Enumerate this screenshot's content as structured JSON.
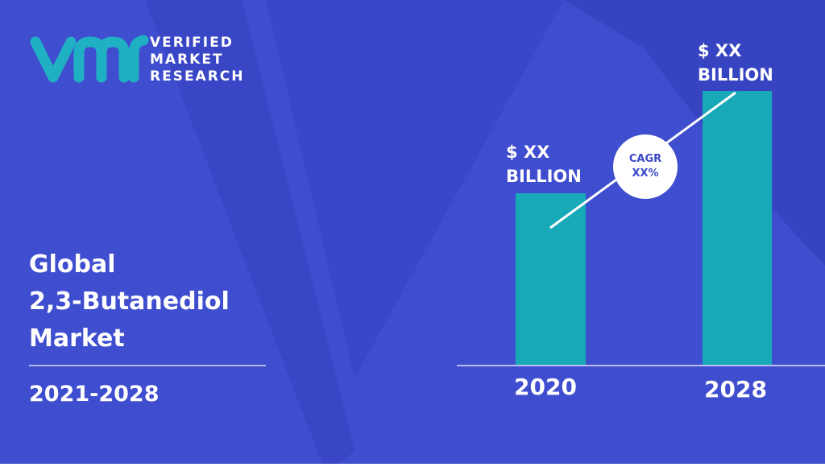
{
  "logo": {
    "lines": [
      "VERIFIED",
      "MARKET",
      "RESEARCH"
    ]
  },
  "headline": {
    "lines": [
      "Global",
      "2,3-Butanediol",
      "Market"
    ]
  },
  "period": "2021-2028",
  "bars": [
    {
      "year": "2020",
      "label": [
        "$ XX",
        "BILLION"
      ]
    },
    {
      "year": "2028",
      "label": [
        "$ XX",
        "BILLION"
      ]
    }
  ],
  "cagr": [
    "CAGR",
    "XX%"
  ]
}
